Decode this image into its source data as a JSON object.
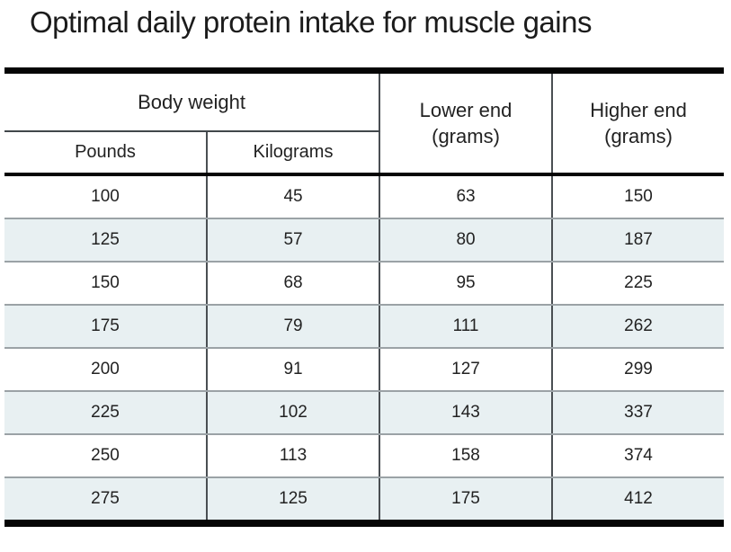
{
  "title": "Optimal daily protein intake for muscle gains",
  "header": {
    "body_weight_group": "Body weight",
    "pounds": "Pounds",
    "kilograms": "Kilograms",
    "lower_end_line1": "Lower end",
    "lower_end_line2": "(grams)",
    "higher_end_line1": "Higher end",
    "higher_end_line2": "(grams)"
  },
  "colors": {
    "stripe_row": "#e8f0f2",
    "thick_rule": "#050505",
    "vertical_divider": "#4a4f53",
    "row_divider": "#9ba2a6",
    "text": "#222222"
  },
  "chart_data": {
    "type": "table",
    "title": "Optimal daily protein intake for muscle gains",
    "column_group": {
      "label": "Body weight",
      "span": 2
    },
    "columns": [
      "Pounds",
      "Kilograms",
      "Lower end (grams)",
      "Higher end (grams)"
    ],
    "rows": [
      [
        100,
        45,
        63,
        150
      ],
      [
        125,
        57,
        80,
        187
      ],
      [
        150,
        68,
        95,
        225
      ],
      [
        175,
        79,
        111,
        262
      ],
      [
        200,
        91,
        127,
        299
      ],
      [
        225,
        102,
        143,
        337
      ],
      [
        250,
        113,
        158,
        374
      ],
      [
        275,
        125,
        175,
        412
      ]
    ]
  }
}
